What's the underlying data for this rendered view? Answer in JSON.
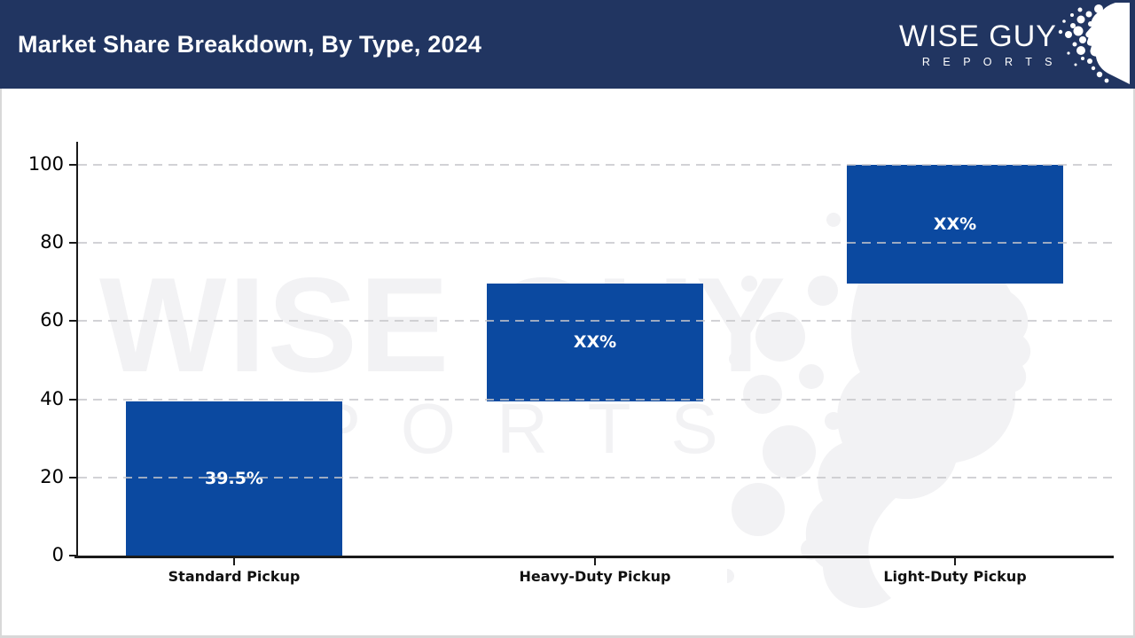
{
  "header": {
    "title": "Market Share Breakdown, By Type, 2024",
    "bg_color": "#213561",
    "logo": {
      "name": "WISE GUY",
      "sub": "R E P O R T S"
    }
  },
  "watermark": {
    "name": "WISE GUY",
    "sub": "R E P O R T S"
  },
  "chart_data": {
    "type": "bar",
    "subtype": "stacked-percentage-waterfall (floating bars summing to 100%)",
    "title": "Market Share Breakdown, By Type, 2024",
    "categories": [
      "Standard Pickup",
      "Heavy-Duty Pickup",
      "Light-Duty Pickup"
    ],
    "segments": [
      {
        "category": "Standard Pickup",
        "start": 0,
        "end": 39.5,
        "label": "39.5%"
      },
      {
        "category": "Heavy-Duty Pickup",
        "start": 39.5,
        "end": 69.6,
        "label": "XX%"
      },
      {
        "category": "Light-Duty Pickup",
        "start": 69.6,
        "end": 100,
        "label": "XX%"
      }
    ],
    "yticks": [
      0,
      20,
      40,
      60,
      80,
      100
    ],
    "ylim": [
      0,
      107
    ],
    "xlabel": "",
    "ylabel": "",
    "legend_position": "none",
    "grid": "horizontal-dashed",
    "colors": {
      "bar": "#0B49A0",
      "bar_label": "#ffffff",
      "grid": "#d9d9d9",
      "axis": "#1a1a1a",
      "header_bg": "#213561",
      "watermark": "#f2f2f4"
    }
  }
}
